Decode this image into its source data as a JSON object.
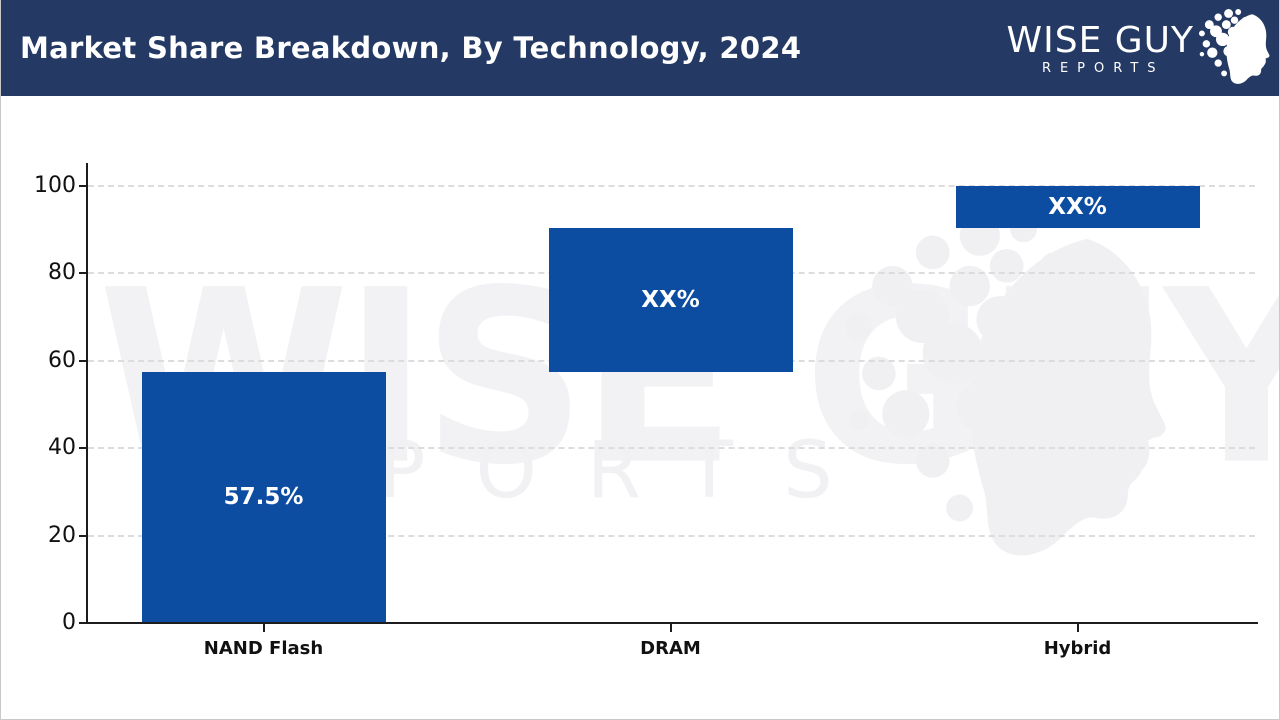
{
  "header": {
    "title": "Market Share Breakdown, By Technology, 2024",
    "bg_color": "#243a64",
    "logo": {
      "line1": "WISE GUY",
      "line2": "REPORTS"
    }
  },
  "watermark": {
    "line1": "WISE GUY",
    "line2": "REPORTS"
  },
  "chart_data": {
    "type": "bar",
    "variant": "floating-segment-columns",
    "title": "Market Share Breakdown, By Technology, 2024",
    "categories": [
      "NAND Flash",
      "DRAM",
      "Hybrid"
    ],
    "segments": [
      {
        "category": "NAND Flash",
        "start": 0,
        "end": 57.5,
        "label": "57.5%"
      },
      {
        "category": "DRAM",
        "start": 57.5,
        "end": 90.5,
        "label": "XX%"
      },
      {
        "category": "Hybrid",
        "start": 90.5,
        "end": 100,
        "label": "XX%"
      }
    ],
    "xlabel": "",
    "ylabel": "",
    "ylim": [
      0,
      100
    ],
    "yticks": [
      0,
      20,
      40,
      60,
      80,
      100
    ],
    "grid": "horizontal-dashed",
    "legend": "none",
    "bar_color": "#0c4da2",
    "label_color": "#ffffff"
  }
}
